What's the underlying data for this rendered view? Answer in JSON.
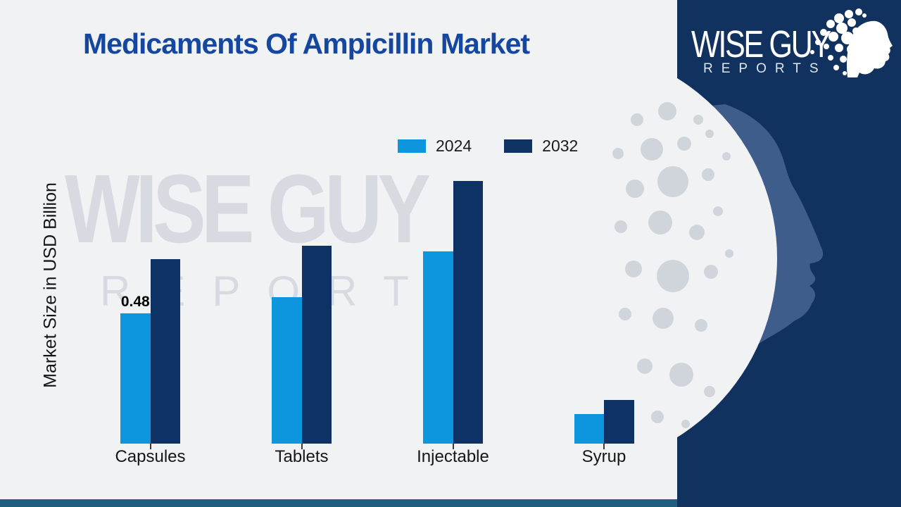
{
  "title": "Medicaments Of Ampicillin Market",
  "brand": {
    "logo_name": "WISE GUY",
    "logo_sub": "REPORTS",
    "watermark_name": "WISE GUY",
    "watermark_sub": "REPORTS"
  },
  "chart_data": {
    "type": "bar",
    "title": "Medicaments Of Ampicillin Market",
    "xlabel": "",
    "ylabel": "Market Size in USD Billion",
    "categories": [
      "Capsules",
      "Tablets",
      "Injectable",
      "Syrup"
    ],
    "series": [
      {
        "name": "2024",
        "color": "#0d96dd",
        "values": [
          0.48,
          0.54,
          0.71,
          0.11
        ]
      },
      {
        "name": "2032",
        "color": "#0e3263",
        "values": [
          0.68,
          0.73,
          0.97,
          0.16
        ]
      }
    ],
    "data_labels": [
      {
        "category": "Capsules",
        "series": "2024",
        "text": "0.48"
      }
    ],
    "ylim": [
      0,
      1.05
    ],
    "grid": false,
    "legend_position": "top-center",
    "axis_lines": "none"
  },
  "colors": {
    "background": "#f1f2f3",
    "panel_navy": "#11315f",
    "bar_blue": "#0d96dd",
    "bar_navy": "#0e3263",
    "footer_teal": "#1e5e7e",
    "title_blue": "#1547a0",
    "watermark_gray": "#d7dae0",
    "face_blue": "#3f5d8a",
    "dots_gray": "#cbd0d9"
  }
}
